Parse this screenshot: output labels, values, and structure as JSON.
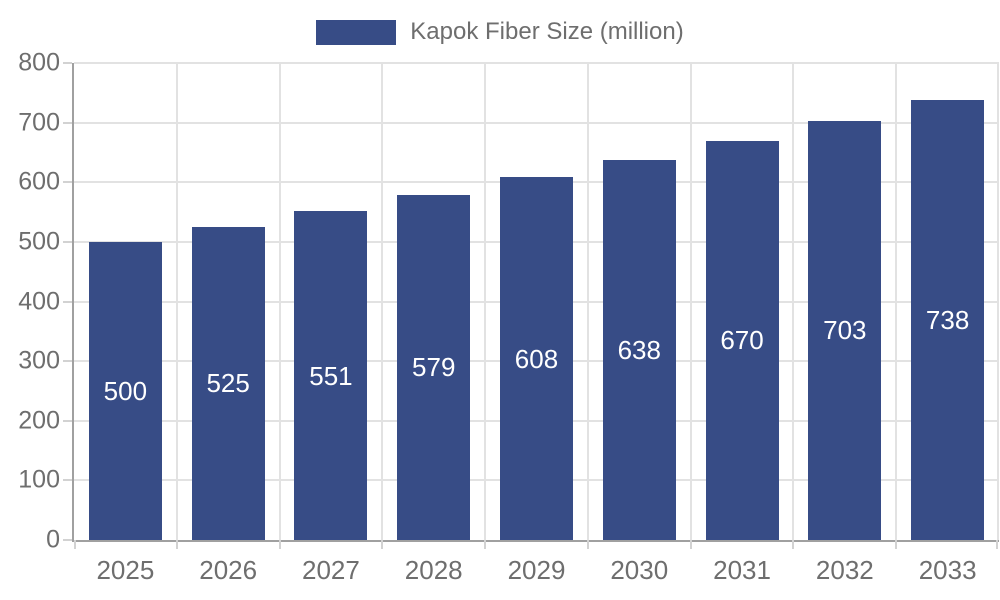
{
  "chart_data": {
    "type": "bar",
    "legend": "Kapok Fiber Size (million)",
    "legend_position": "top",
    "categories": [
      "2025",
      "2026",
      "2027",
      "2028",
      "2029",
      "2030",
      "2031",
      "2032",
      "2033"
    ],
    "values": [
      500,
      525,
      551,
      579,
      608,
      638,
      670,
      703,
      738
    ],
    "series_name": "Kapok Fiber Size (million)",
    "title": "",
    "xlabel": "",
    "ylabel": "",
    "ylim": [
      0,
      800
    ],
    "yticks": [
      0,
      100,
      200,
      300,
      400,
      500,
      600,
      700,
      800
    ],
    "grid": true,
    "bar_labels_inside": true
  },
  "colors": {
    "bar": "#374C86",
    "bar_label": "#FFFFFF",
    "axis": "#A0A0A0",
    "grid": "#E2E2E2",
    "tick": "#D2D2D2",
    "text": "#6E6E6E"
  }
}
